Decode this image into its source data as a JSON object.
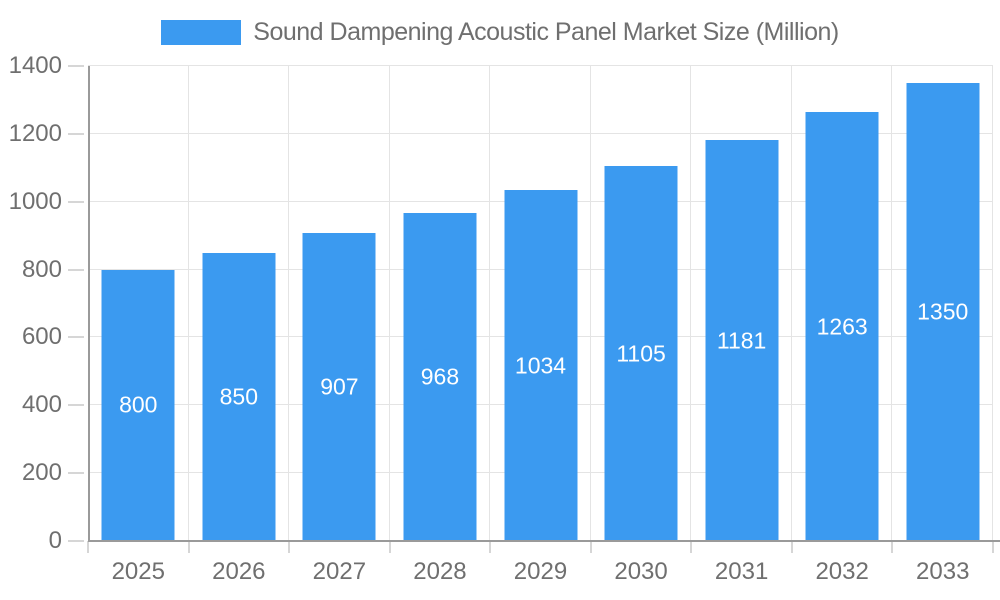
{
  "legend": {
    "label": "Sound Dampening Acoustic Panel Market Size (Million)"
  },
  "colors": {
    "bar": "#3B9AF0",
    "grid": "#e4e4e4",
    "tick": "#d6d6d6",
    "axis": "#9a9a9a",
    "label": "#6f6f6f",
    "value_label": "#ffffff",
    "background": "#ffffff"
  },
  "chart_data": {
    "type": "bar",
    "title": "Sound Dampening Acoustic Panel Market Size (Million)",
    "categories": [
      "2025",
      "2026",
      "2027",
      "2028",
      "2029",
      "2030",
      "2031",
      "2032",
      "2033"
    ],
    "values": [
      800,
      850,
      907,
      968,
      1034,
      1105,
      1181,
      1263,
      1350
    ],
    "xlabel": "",
    "ylabel": "",
    "ylim": [
      0,
      1400
    ],
    "ytick_step": 200,
    "yticks": [
      0,
      200,
      400,
      600,
      800,
      1000,
      1200,
      1400
    ],
    "grid": true,
    "legend_position": "top",
    "value_labels": "inside-center"
  }
}
